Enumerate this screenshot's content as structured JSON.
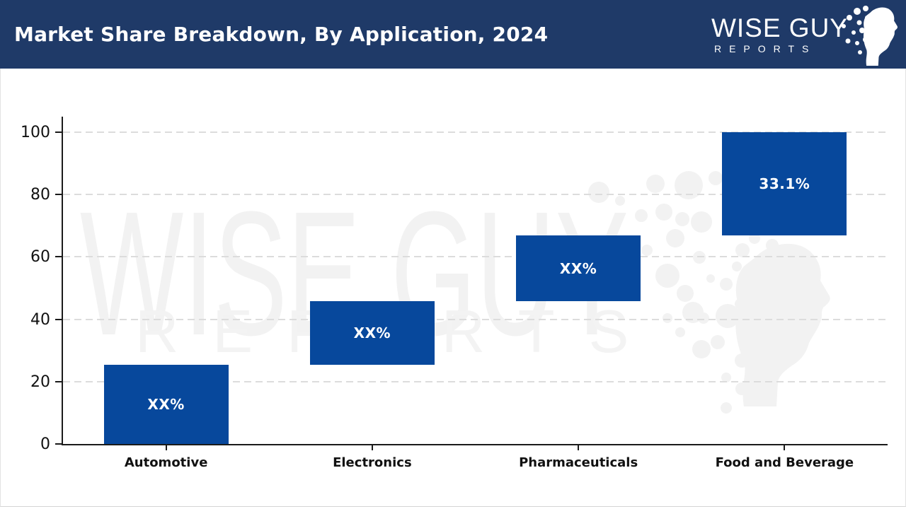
{
  "header": {
    "title": "Market Share Breakdown, By Application, 2024",
    "logo": {
      "line1": "WISE GUY",
      "line2": "REPORTS"
    }
  },
  "watermark": {
    "line1": "WISE GUY",
    "line2": "REPORTS"
  },
  "colors": {
    "header_bg": "#1f3a68",
    "bar": "#07489c",
    "grid": "#dcdcdc",
    "axis": "#1a1a1a",
    "bar_label": "#ffffff"
  },
  "chart_data": {
    "type": "bar",
    "subtype": "waterfall",
    "title": "Market Share Breakdown, By Application, 2024",
    "categories": [
      "Automotive",
      "Electronics",
      "Pharmaceuticals",
      "Food and Beverage"
    ],
    "segments": [
      {
        "category": "Automotive",
        "start": 0,
        "end": 25.4,
        "value": 25.4,
        "label": "XX%"
      },
      {
        "category": "Electronics",
        "start": 25.4,
        "end": 45.8,
        "value": 20.4,
        "label": "XX%"
      },
      {
        "category": "Pharmaceuticals",
        "start": 45.8,
        "end": 66.9,
        "value": 21.1,
        "label": "XX%"
      },
      {
        "category": "Food and Beverage",
        "start": 66.9,
        "end": 100,
        "value": 33.1,
        "label": "33.1%"
      }
    ],
    "yticks": [
      0,
      20,
      40,
      60,
      80,
      100
    ],
    "ylim": [
      0,
      105
    ],
    "xlabel": "",
    "ylabel": "",
    "grid": "horizontal-dashed",
    "legend": "none",
    "bar_color": "#07489c",
    "label_color": "#ffffff"
  }
}
